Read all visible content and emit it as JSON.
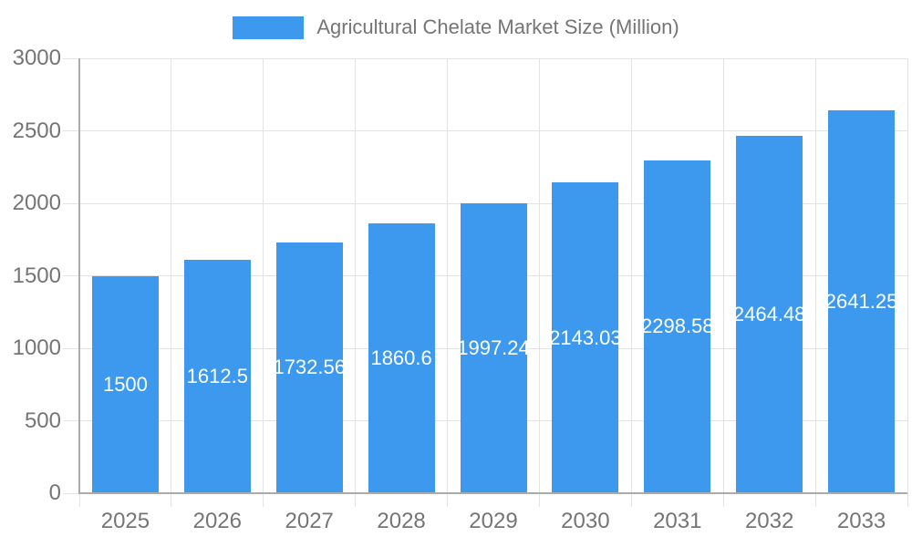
{
  "legend": {
    "label": "Agricultural Chelate Market Size (Million)"
  },
  "chart_data": {
    "type": "bar",
    "title": "Agricultural Chelate Market Size (Million)",
    "series_name": "Agricultural Chelate Market Size (Million)",
    "categories": [
      "2025",
      "2026",
      "2027",
      "2028",
      "2029",
      "2030",
      "2031",
      "2032",
      "2033"
    ],
    "values": [
      1500,
      1612.5,
      1732.56,
      1860.6,
      1997.24,
      2143.03,
      2298.58,
      2464.48,
      2641.25
    ],
    "value_labels": [
      "1500",
      "1612.5",
      "1732.56",
      "1860.6",
      "1997.24",
      "2143.03",
      "2298.58",
      "2464.48",
      "2641.25"
    ],
    "ylim": [
      0,
      3000
    ],
    "yticks": [
      0,
      500,
      1000,
      1500,
      2000,
      2500,
      3000
    ],
    "grid": true,
    "legend_position": "top",
    "value_labels_position": "inside-center",
    "colors": {
      "bar": "#3D99EE",
      "axis_text": "#757575",
      "value_text": "#ffffff",
      "gridline": "#e3e3e3",
      "axis_line": "#ababab",
      "background": "#ffffff"
    }
  }
}
